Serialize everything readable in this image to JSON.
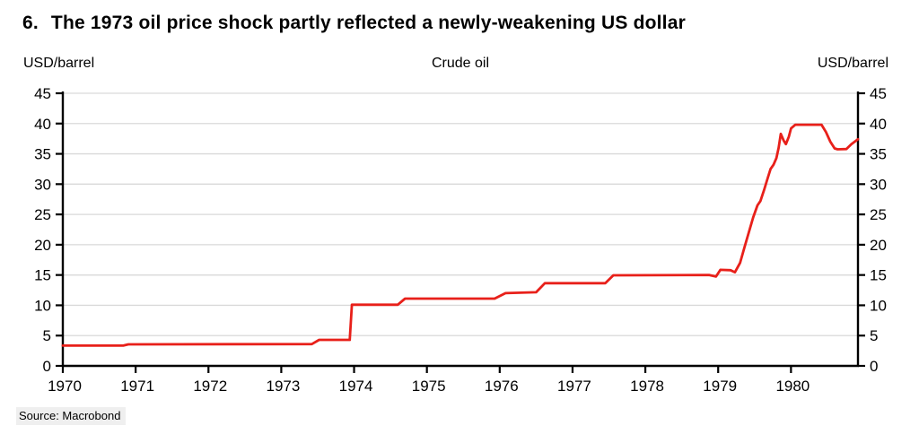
{
  "header": {
    "title_number": "6.",
    "title_text": "The 1973 oil price shock partly reflected a newly-weakening US dollar"
  },
  "captions": {
    "left_units": "USD/barrel",
    "chart_title": "Crude oil",
    "right_units": "USD/barrel"
  },
  "footer": {
    "source": "Source: Macrobond"
  },
  "colors": {
    "line": "#e8201a",
    "grid": "#d9d9d9",
    "axis": "#000000",
    "source_bg": "#efefef"
  },
  "chart_data": {
    "type": "line",
    "title": "Crude oil",
    "xlabel": "",
    "ylabel": "USD/barrel",
    "ylabel_right": "USD/barrel",
    "xlim": [
      1970,
      1980.92
    ],
    "ylim": [
      0,
      45
    ],
    "x_ticks": [
      1970,
      1971,
      1972,
      1973,
      1974,
      1975,
      1976,
      1977,
      1978,
      1979,
      1980
    ],
    "y_ticks": [
      0,
      5,
      10,
      15,
      20,
      25,
      30,
      35,
      40,
      45
    ],
    "grid": "horizontal-only",
    "legend_position": "none",
    "series": [
      {
        "name": "Crude oil (USD/barrel)",
        "color": "#e8201a",
        "points": [
          [
            1970.0,
            3.35
          ],
          [
            1970.83,
            3.35
          ],
          [
            1970.9,
            3.56
          ],
          [
            1973.42,
            3.6
          ],
          [
            1973.52,
            4.3
          ],
          [
            1973.94,
            4.3
          ],
          [
            1973.97,
            10.1
          ],
          [
            1974.6,
            10.1
          ],
          [
            1974.7,
            11.1
          ],
          [
            1975.93,
            11.1
          ],
          [
            1976.08,
            12.0
          ],
          [
            1976.5,
            12.15
          ],
          [
            1976.62,
            13.65
          ],
          [
            1977.45,
            13.65
          ],
          [
            1977.56,
            14.95
          ],
          [
            1978.88,
            15.0
          ],
          [
            1978.97,
            14.75
          ],
          [
            1979.03,
            15.85
          ],
          [
            1979.17,
            15.8
          ],
          [
            1979.23,
            15.45
          ],
          [
            1979.3,
            17.0
          ],
          [
            1979.36,
            19.5
          ],
          [
            1979.42,
            22.0
          ],
          [
            1979.48,
            24.5
          ],
          [
            1979.54,
            26.5
          ],
          [
            1979.58,
            27.2
          ],
          [
            1979.63,
            29.0
          ],
          [
            1979.68,
            31.0
          ],
          [
            1979.72,
            32.5
          ],
          [
            1979.76,
            33.2
          ],
          [
            1979.8,
            34.3
          ],
          [
            1979.83,
            36.0
          ],
          [
            1979.86,
            38.3
          ],
          [
            1979.9,
            37.2
          ],
          [
            1979.93,
            36.6
          ],
          [
            1979.97,
            37.8
          ],
          [
            1980.0,
            39.2
          ],
          [
            1980.06,
            39.8
          ],
          [
            1980.42,
            39.8
          ],
          [
            1980.48,
            38.6
          ],
          [
            1980.54,
            37.0
          ],
          [
            1980.6,
            35.9
          ],
          [
            1980.64,
            35.75
          ],
          [
            1980.76,
            35.8
          ],
          [
            1980.83,
            36.6
          ],
          [
            1980.92,
            37.4
          ]
        ]
      }
    ]
  }
}
